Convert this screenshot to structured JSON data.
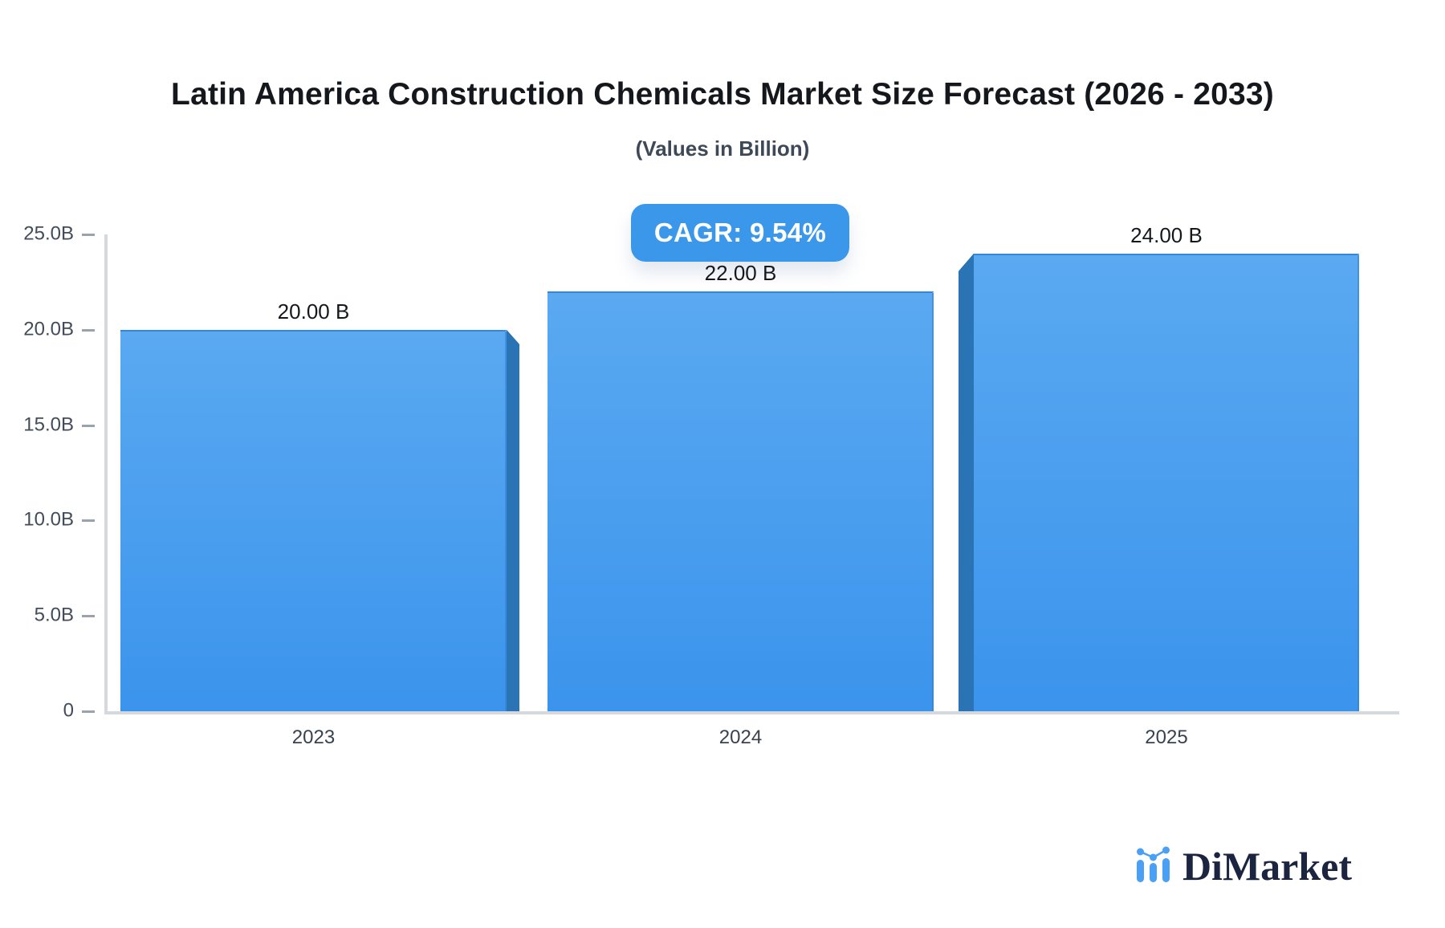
{
  "header": {
    "title": "Latin America Construction Chemicals Market Size Forecast (2026 - 2033)",
    "subtitle": "(Values in Billion)"
  },
  "badge": {
    "label": "CAGR: 9.54%"
  },
  "chart_data": {
    "type": "bar",
    "title": "Latin America Construction Chemicals Market Size Forecast (2026 - 2033)",
    "subtitle": "(Values in Billion)",
    "categories": [
      "2023",
      "2024",
      "2025"
    ],
    "values": [
      20.0,
      22.0,
      24.0
    ],
    "value_labels": [
      "20.00 B",
      "22.00 B",
      "24.00 B"
    ],
    "unit": "B",
    "cagr_label": "CAGR: 9.54%",
    "xlabel": "",
    "ylabel": "",
    "ylim": [
      0,
      25
    ],
    "y_ticks": [
      {
        "label": "25.0B",
        "value": 25
      },
      {
        "label": "20.0B",
        "value": 20
      },
      {
        "label": "15.0B",
        "value": 15
      },
      {
        "label": "10.0B",
        "value": 10
      },
      {
        "label": "5.0B",
        "value": 5
      },
      {
        "label": "0",
        "value": 0
      }
    ],
    "legend": "none",
    "grid": false
  },
  "colors": {
    "bar_gradient_top": "#5aa9f1",
    "bar_gradient_bottom": "#3b94ec",
    "bar_side_face": "#2a74b6",
    "bar_top_edge": "#3287da",
    "badge_bg": "#3b97ea",
    "badge_text": "#ffffff",
    "axis_line": "#d5d8dd",
    "tick_text": "#424c5a",
    "title_text": "#14171c",
    "logo_text": "#1b2540",
    "logo_icon": "#4aa0f4"
  },
  "logo": {
    "text": "DiMarket"
  }
}
